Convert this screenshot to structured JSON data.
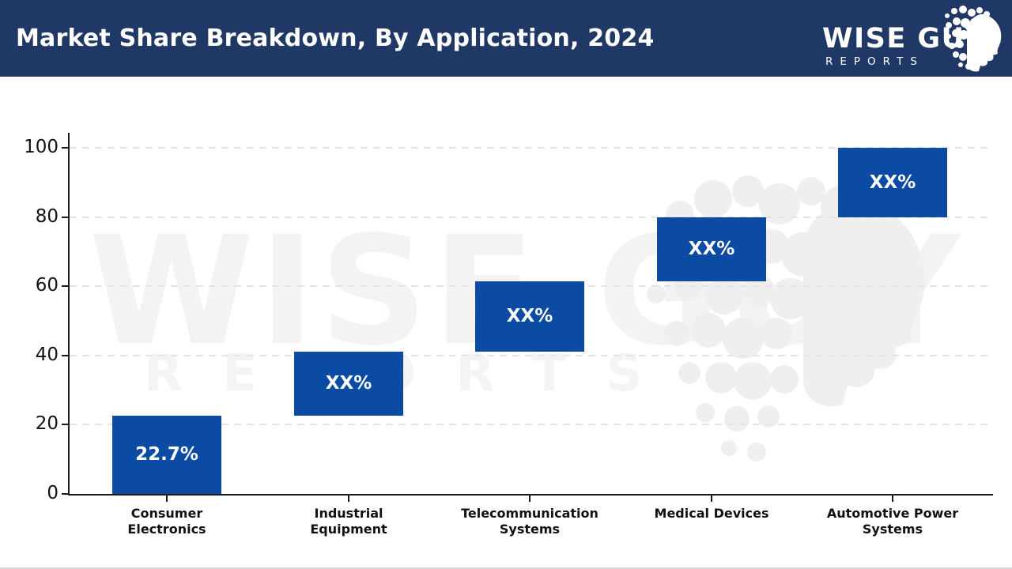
{
  "header": {
    "title": "Market Share Breakdown, By Application, 2024",
    "logo": {
      "name_top": "WISE GUY",
      "name_bottom": "REPORTS"
    }
  },
  "watermark": {
    "text_large": "WISE GUY",
    "text_small": "REPORTS"
  },
  "colors": {
    "header_bg": "#1f3865",
    "bar": "#0c4ba3",
    "bar_label": "#ffffff",
    "axis": "#1a1a1a",
    "gridline": "#e4e4e4",
    "watermark": "#f3f3f3"
  },
  "chart_data": {
    "type": "bar",
    "subtype": "waterfall",
    "title": "Market Share Breakdown, By Application, 2024",
    "categories": [
      "Consumer Electronics",
      "Industrial Equipment",
      "Telecommunication Systems",
      "Medical Devices",
      "Automotive Power Systems"
    ],
    "category_lines": [
      [
        "Consumer",
        "Electronics"
      ],
      [
        "Industrial",
        "Equipment"
      ],
      [
        "Telecommunication",
        "Systems"
      ],
      [
        "Medical Devices"
      ],
      [
        "Automotive Power",
        "Systems"
      ]
    ],
    "segments": [
      {
        "category": "Consumer Electronics",
        "start": 0,
        "end": 22.7,
        "label": "22.7%"
      },
      {
        "category": "Industrial Equipment",
        "start": 22.7,
        "end": 41.2,
        "label": "XX%"
      },
      {
        "category": "Telecommunication Systems",
        "start": 41.2,
        "end": 61.4,
        "label": "XX%"
      },
      {
        "category": "Medical Devices",
        "start": 61.4,
        "end": 80.0,
        "label": "XX%"
      },
      {
        "category": "Automotive Power Systems",
        "start": 80.0,
        "end": 100.0,
        "label": "XX%"
      }
    ],
    "values": [
      22.7,
      18.5,
      20.2,
      18.6,
      20.0
    ],
    "bar_labels": [
      "22.7%",
      "XX%",
      "XX%",
      "XX%",
      "XX%"
    ],
    "yticks": [
      0,
      20,
      40,
      60,
      80,
      100
    ],
    "ylim": [
      0,
      105
    ],
    "xlabel": "",
    "ylabel": "",
    "grid": "horizontal-dashed",
    "legend": "none"
  }
}
